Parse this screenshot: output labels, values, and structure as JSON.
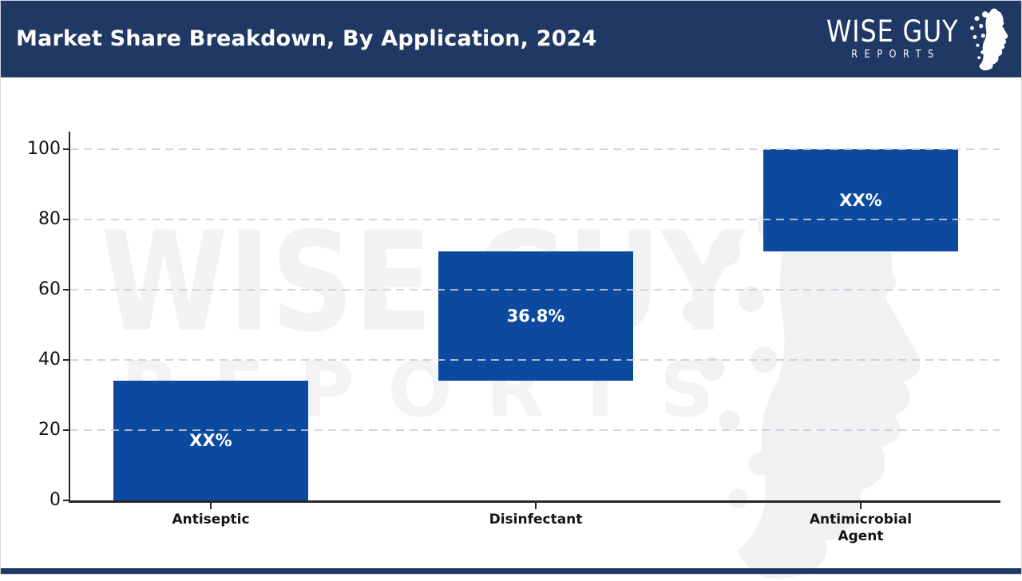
{
  "header": {
    "title": "Market Share Breakdown, By Application, 2024",
    "logo": {
      "line1": "WISE GUY",
      "line2": "REPORTS"
    }
  },
  "watermark": {
    "line1": "WISE GUY",
    "line2": "REPORTS"
  },
  "colors": {
    "header_bg": "#1f3864",
    "bar": "#0b4a9f",
    "bar_label": "#ffffff",
    "gridline": "#c9ccd1",
    "axis": "#262626",
    "watermark": "#f1f2f4"
  },
  "chart_data": {
    "type": "bar",
    "subtype": "waterfall",
    "title": "Market Share Breakdown, By Application, 2024",
    "categories": [
      "Antiseptic",
      "Disinfectant",
      "Antimicrobial Agent"
    ],
    "segments": [
      {
        "category": "Antiseptic",
        "start": 0,
        "end": 34.1,
        "label": "XX%"
      },
      {
        "category": "Disinfectant",
        "start": 34.1,
        "end": 70.9,
        "label": "36.8%"
      },
      {
        "category": "Antimicrobial Agent",
        "start": 70.9,
        "end": 100,
        "label": "XX%"
      }
    ],
    "yticks": [
      0,
      20,
      40,
      60,
      80,
      100
    ],
    "ylim": [
      0,
      105
    ],
    "xlabel": "",
    "ylabel": "",
    "grid": {
      "axis": "y",
      "style": "dashed",
      "on": true
    },
    "legend": "none"
  }
}
